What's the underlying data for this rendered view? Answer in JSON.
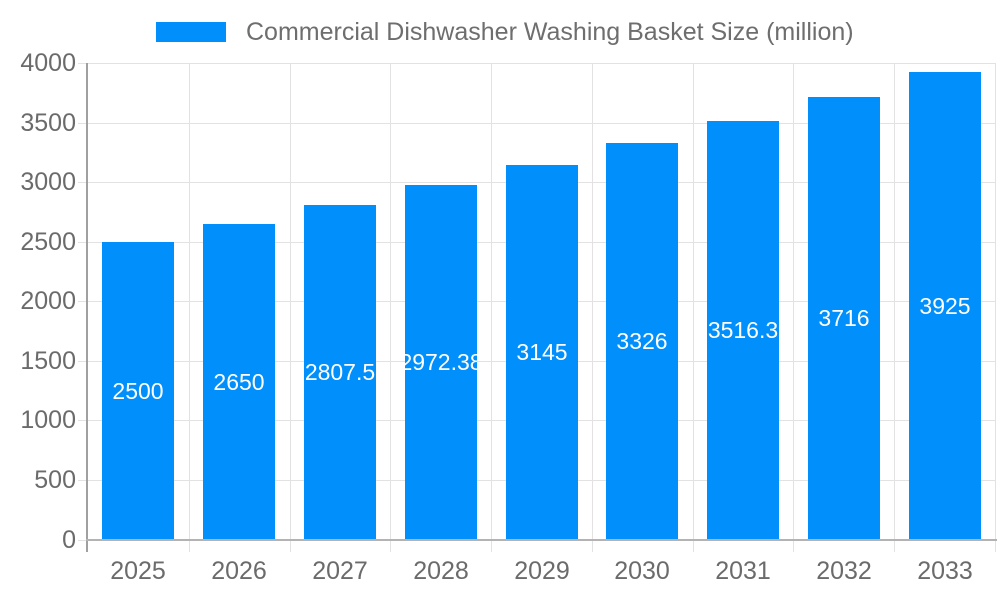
{
  "legend": {
    "label": "Commercial Dishwasher Washing Basket Size (million)",
    "swatch_color": "#008FFB"
  },
  "chart_data": {
    "type": "bar",
    "title": "Commercial Dishwasher Washing Basket Size (million)",
    "categories": [
      "2025",
      "2026",
      "2027",
      "2028",
      "2029",
      "2030",
      "2031",
      "2032",
      "2033"
    ],
    "values": [
      2500,
      2650,
      2807.5,
      2972.38,
      3145,
      3326,
      3516.3,
      3716,
      3925
    ],
    "bar_labels": [
      "2500",
      "2650",
      "2807.5",
      "2972.38",
      "3145",
      "3326",
      "3516.3",
      "3716",
      "3925"
    ],
    "xlabel": "",
    "ylabel": "",
    "ylim": [
      0,
      4000
    ],
    "yticks": [
      0,
      500,
      1000,
      1500,
      2000,
      2500,
      3000,
      3500,
      4000
    ],
    "grid": true,
    "legend_position": "top",
    "bar_color": "#008FFB",
    "bar_label_color": "#ffffff",
    "axis_text_color": "#6b6b6b",
    "grid_color": "#e2e2e2"
  }
}
